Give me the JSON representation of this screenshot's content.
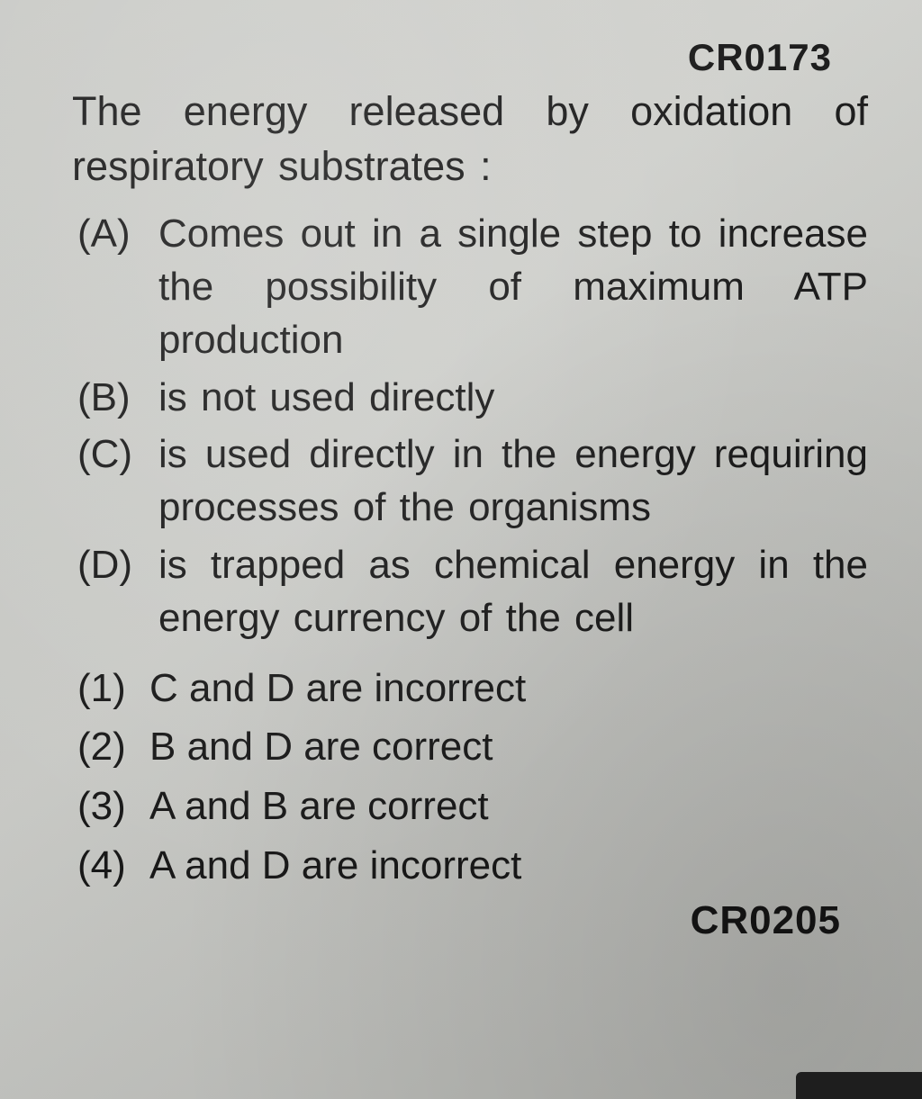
{
  "code_top": "CR0173",
  "question": "The energy released by oxidation of respiratory substrates :",
  "statements": [
    {
      "label": "(A)",
      "text": "Comes out in a single step to increase the possibility of maximum ATP production"
    },
    {
      "label": "(B)",
      "text": "is not used directly"
    },
    {
      "label": "(C)",
      "text": "is used directly in the energy requiring processes of the organisms"
    },
    {
      "label": "(D)",
      "text": "is trapped as chemical energy in the energy currency of the cell"
    }
  ],
  "options": [
    {
      "label": "(1)",
      "text": "C and D are incorrect"
    },
    {
      "label": "(2)",
      "text": "B and D are correct"
    },
    {
      "label": "(3)",
      "text": "A and B are correct"
    },
    {
      "label": "(4)",
      "text": "A and D are incorrect"
    }
  ],
  "code_bottom": "CR0205",
  "colors": {
    "background": "#cacbc7",
    "text": "#171717"
  },
  "typography": {
    "base_fontsize_pt": 34,
    "code_fontsize_pt": 32,
    "font_family": "Arial, sans-serif",
    "weight": "500-700"
  }
}
